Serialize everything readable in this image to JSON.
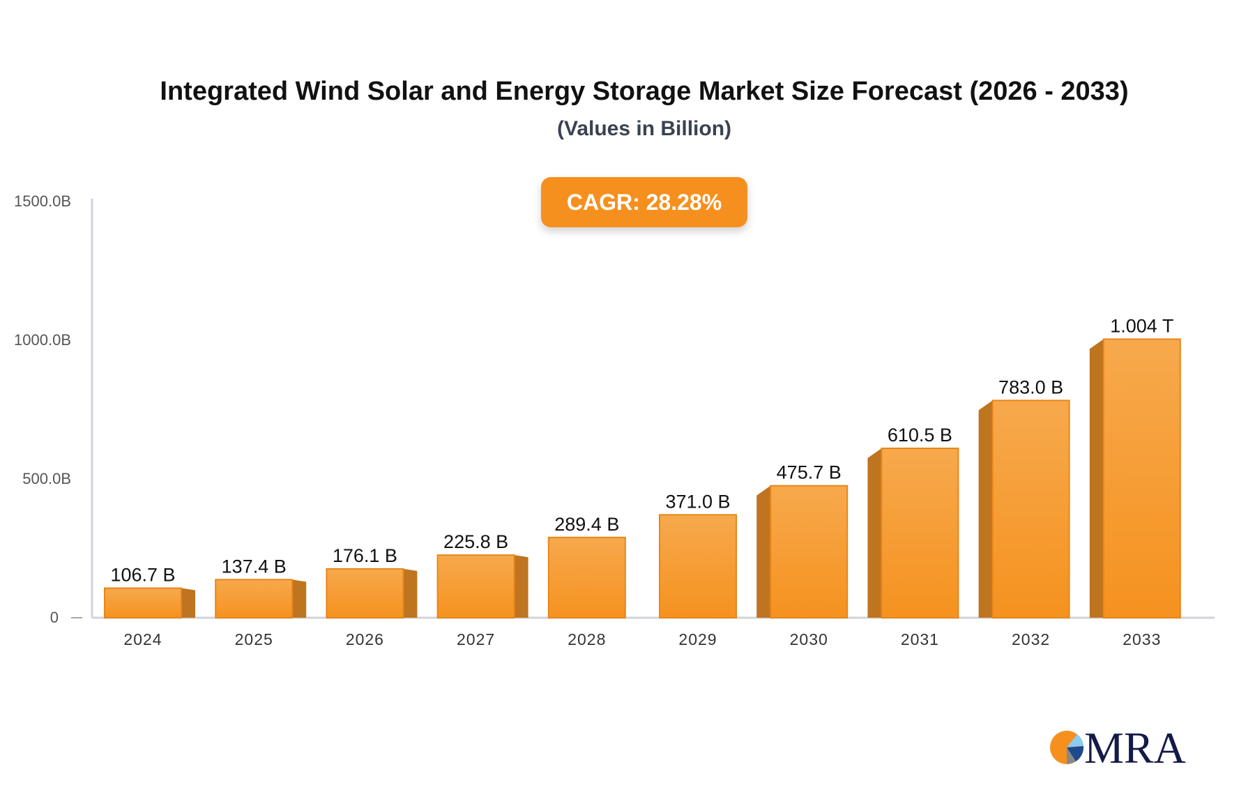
{
  "title": "Integrated Wind Solar and Energy Storage Market Size Forecast (2026 - 2033)",
  "subtitle": "(Values in Billion)",
  "cagr_label": "CAGR: 28.28%",
  "logo_text": "MRA",
  "colors": {
    "bar_front": "#f7a443",
    "bar_side": "#bf7420",
    "bar_edge": "#e8861a",
    "badge": "#f5901f",
    "axis": "#d0d3da"
  },
  "chart_data": {
    "type": "bar",
    "title": "Integrated Wind Solar and Energy Storage Market Size Forecast (2026 - 2033)",
    "subtitle": "(Values in Billion)",
    "categories": [
      "2024",
      "2025",
      "2026",
      "2027",
      "2028",
      "2029",
      "2030",
      "2031",
      "2032",
      "2033"
    ],
    "values": [
      106.7,
      137.4,
      176.1,
      225.8,
      289.4,
      371.0,
      475.7,
      610.5,
      783.0,
      1004
    ],
    "data_labels": [
      "106.7 B",
      "137.4 B",
      "176.1 B",
      "225.8 B",
      "289.4 B",
      "371.0 B",
      "475.7 B",
      "610.5 B",
      "783.0 B",
      "1.004 T"
    ],
    "ylim": [
      0,
      1500
    ],
    "yticks": [
      0,
      500,
      1000,
      1500
    ],
    "ytick_labels": [
      "0",
      "500.0B",
      "1000.0B",
      "1500.0B"
    ],
    "xlabel": "",
    "ylabel": "",
    "grid": false,
    "legend": "none"
  }
}
